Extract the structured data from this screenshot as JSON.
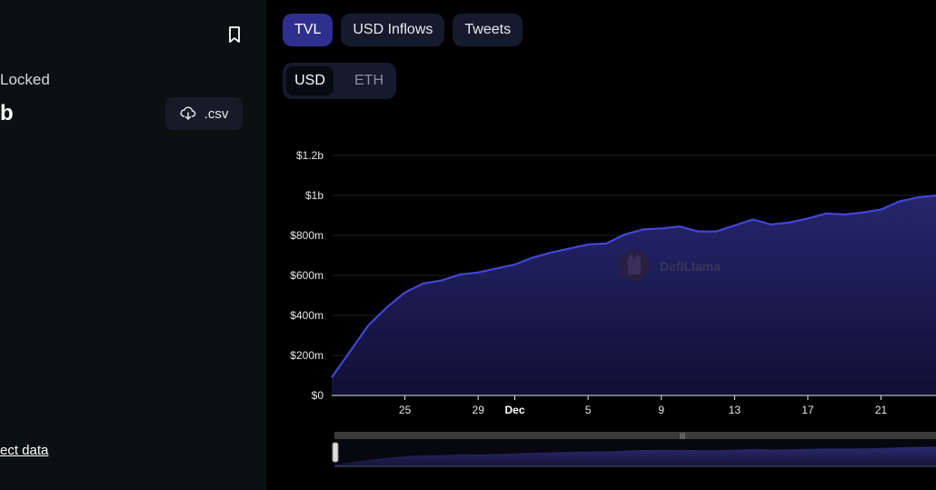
{
  "sidebar": {
    "tvl_label": "Locked",
    "tvl_value": "b",
    "csv_label": ".csv",
    "data_link": "ect data"
  },
  "tabs": [
    {
      "label": "TVL",
      "active": true
    },
    {
      "label": "USD Inflows",
      "active": false
    },
    {
      "label": "Tweets",
      "active": false
    }
  ],
  "denomination": {
    "selected": "USD",
    "options": [
      "USD",
      "ETH"
    ]
  },
  "watermark": "DefiLlama",
  "colors": {
    "line": "#4545d6",
    "accent": "#2f2f8f",
    "background": "#000000",
    "sidebar": "#0b1011"
  },
  "icons": {
    "bookmark": "bookmark-icon",
    "download": "cloud-download-icon",
    "watermark": "defillama-logo-icon"
  },
  "chart_data": {
    "type": "area",
    "x_tick_labels": [
      "25",
      "29",
      "Dec",
      "5",
      "9",
      "13",
      "17",
      "21"
    ],
    "y_tick_labels": [
      "$0",
      "$200m",
      "$400m",
      "$600m",
      "$800m",
      "$1b",
      "$1.2b"
    ],
    "ylim": [
      0,
      1200
    ],
    "x_range": [
      21,
      54
    ],
    "x_ticks": [
      25,
      29,
      31,
      35,
      39,
      43,
      47,
      51
    ],
    "y_ticks": [
      0,
      200,
      400,
      600,
      800,
      1000,
      1200
    ],
    "series": [
      {
        "x": [
          21,
          22,
          23,
          24,
          25,
          26,
          27,
          28,
          29,
          30,
          31,
          32,
          33,
          34,
          35,
          36,
          37,
          38,
          39,
          40,
          41,
          42,
          43,
          44,
          45,
          46,
          47,
          48,
          49,
          50,
          51,
          52,
          53,
          54
        ],
        "values": [
          90,
          220,
          350,
          440,
          515,
          560,
          575,
          605,
          615,
          635,
          655,
          690,
          715,
          735,
          755,
          760,
          805,
          830,
          835,
          845,
          820,
          820,
          850,
          880,
          855,
          865,
          885,
          910,
          905,
          915,
          930,
          970,
          990,
          1000
        ]
      }
    ]
  }
}
